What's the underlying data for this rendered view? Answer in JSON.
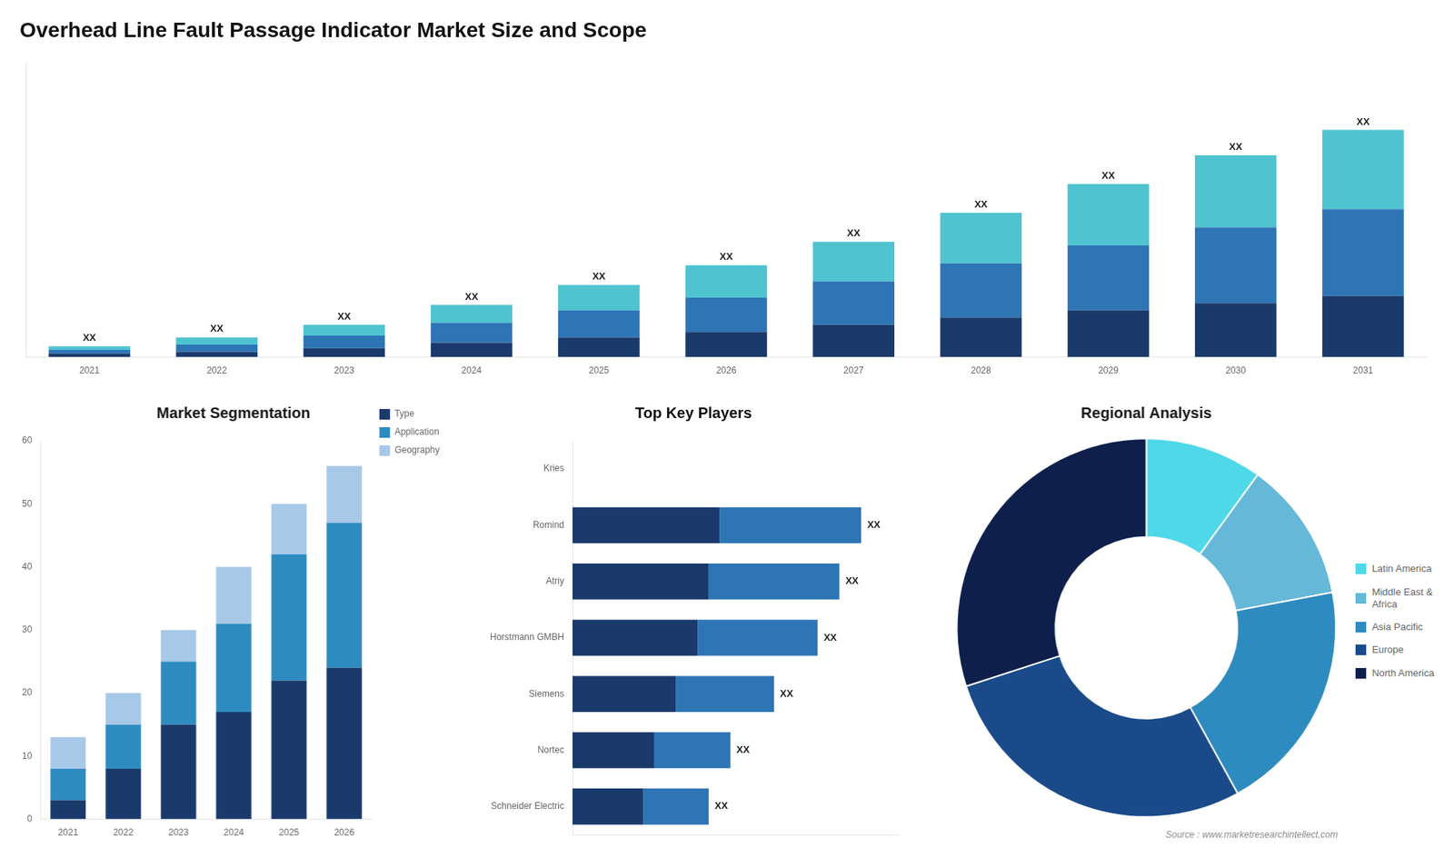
{
  "chart_data": [
    {
      "type": "bar",
      "title": "Overhead Line Fault Passage Indicator Market Size and Scope",
      "stacked": true,
      "categories": [
        "2021",
        "2022",
        "2023",
        "2024",
        "2025",
        "2026",
        "2027",
        "2028",
        "2029",
        "2030",
        "2031"
      ],
      "series": [
        {
          "color": "#1a3a6b",
          "values": [
            1,
            1.5,
            2.5,
            4,
            5.5,
            7,
            9,
            11,
            13,
            15,
            17
          ]
        },
        {
          "color": "#2e75b6",
          "values": [
            1,
            2,
            3.5,
            5.5,
            7.5,
            9.5,
            12,
            15,
            18,
            21,
            24
          ]
        },
        {
          "color": "#4fc3d0",
          "values": [
            1,
            2,
            3,
            5,
            7,
            9,
            11,
            14,
            17,
            20,
            22
          ],
          "value_labels": [
            "XX",
            "XX",
            "XX",
            "XX",
            "XX",
            "XX",
            "XX",
            "XX",
            "XX",
            "XX",
            "XX"
          ]
        }
      ],
      "ylim": [
        0,
        81.9
      ],
      "grid": false,
      "tick_labels": "x"
    },
    {
      "type": "bar",
      "title": "Market Segmentation",
      "stacked": true,
      "categories": [
        "2021",
        "2022",
        "2023",
        "2024",
        "2025",
        "2026"
      ],
      "series": [
        {
          "name": "Type",
          "color": "#1a3a6b",
          "values": [
            3,
            8,
            15,
            17,
            22,
            24
          ]
        },
        {
          "name": "Application",
          "color": "#2e8bc0",
          "values": [
            5,
            7,
            10,
            14,
            20,
            23
          ]
        },
        {
          "name": "Geography",
          "color": "#a8c8e8",
          "values": [
            5,
            5,
            5,
            9,
            8,
            9
          ]
        }
      ],
      "ylim": [
        0,
        60
      ],
      "yticks": [
        0,
        10,
        20,
        30,
        40,
        50,
        60
      ],
      "grid": false,
      "legend": "right"
    },
    {
      "type": "bar",
      "title": "Top Key Players",
      "orientation": "horizontal",
      "stacked": true,
      "categories": [
        "Kries",
        "Romind",
        "Atriy",
        "Horstmann GMBH",
        "Siemens",
        "Nortec",
        "Schneider Electric"
      ],
      "series": [
        {
          "color": "#1a3a6b",
          "values": [
            0.0,
            0.27,
            0.25,
            0.23,
            0.19,
            0.15,
            0.13
          ]
        },
        {
          "color": "#2e75b6",
          "values": [
            0.0,
            0.26,
            0.24,
            0.22,
            0.18,
            0.14,
            0.12
          ],
          "value_labels": [
            null,
            "XX",
            "XX",
            "XX",
            "XX",
            "XX",
            "XX"
          ]
        }
      ],
      "xlim": [
        0,
        0.6
      ],
      "grid": false,
      "tick_labels": "y"
    },
    {
      "type": "doughnut",
      "title": "Regional Analysis",
      "subtitle": "Source : www.marketresearchintellect.com",
      "categories": [
        "Latin America",
        "Middle East &\nAfrica",
        "Asia Pacific",
        "Europe",
        "North America"
      ],
      "values": [
        10,
        12,
        20,
        28,
        30
      ],
      "colors": [
        "#4fd8e8",
        "#66b8d8",
        "#2e8bc0",
        "#1a4a8a",
        "#0d1f4a"
      ],
      "legend": "right"
    }
  ]
}
